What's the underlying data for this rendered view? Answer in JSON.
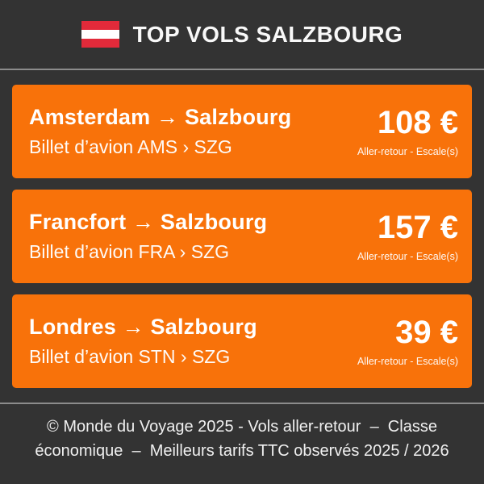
{
  "header": {
    "title": "TOP VOLS SALZBOURG",
    "flag_icon": "austria-flag"
  },
  "cards": [
    {
      "route": "Amsterdam → Salzbourg",
      "subtitle": "Billet d’avion AMS › SZG",
      "price": "108 €",
      "price_note": "Aller-retour - Escale(s)"
    },
    {
      "route": "Francfort → Salzbourg",
      "subtitle": "Billet d’avion FRA › SZG",
      "price": "157 €",
      "price_note": "Aller-retour - Escale(s)"
    },
    {
      "route": "Londres → Salzbourg",
      "subtitle": "Billet d’avion STN › SZG",
      "price": "39 €",
      "price_note": "Aller-retour - Escale(s)"
    }
  ],
  "footer": {
    "line1": "© Monde du Voyage 2025 - Vols aller-retour  –  Classe",
    "line2": "économique  –  Meilleurs tarifs TTC observés 2025 / 2026"
  },
  "colors": {
    "background": "#333333",
    "card_orange": "#F8720A",
    "divider_gray": "#8C8C8C",
    "flag_red": "#E22A3A"
  }
}
